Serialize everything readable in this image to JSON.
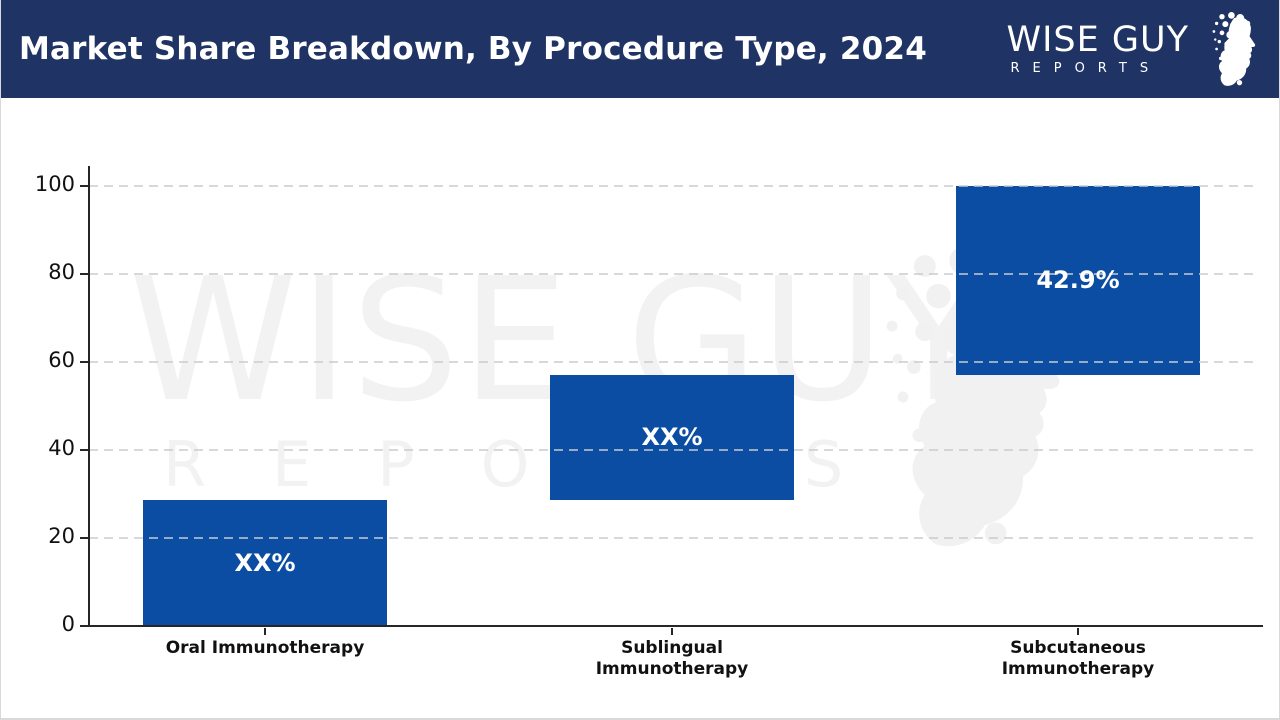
{
  "header": {
    "title": "Market Share Breakdown, By Procedure Type, 2024",
    "logo": {
      "line1": "WISE GUY",
      "line2": "REPORTS"
    }
  },
  "watermark": {
    "line1": "WISE GUY",
    "line2": "REPORTS"
  },
  "chart_data": {
    "type": "bar",
    "subtype": "stacked-waterfall",
    "title": "Market Share Breakdown, By Procedure Type, 2024",
    "categories": [
      "Oral Immunotherapy",
      "Sublingual\nImmunotherapy",
      "Subcutaneous\nImmunotherapy"
    ],
    "segments": [
      {
        "category": "Oral Immunotherapy",
        "start": 0,
        "end": 28.6,
        "value": 28.6,
        "label": "XX%"
      },
      {
        "category": "Sublingual Immunotherapy",
        "start": 28.6,
        "end": 57.1,
        "value": 28.5,
        "label": "XX%"
      },
      {
        "category": "Subcutaneous Immunotherapy",
        "start": 57.1,
        "end": 100,
        "value": 42.9,
        "label": "42.9%"
      }
    ],
    "xlabel": "",
    "ylabel": "",
    "ylim": [
      0,
      100
    ],
    "yticks": [
      0,
      20,
      40,
      60,
      80,
      100
    ],
    "grid": "horizontal-dashed",
    "legend": "none",
    "bar_color": "#0b4da2"
  },
  "colors": {
    "header_bg": "#1f3464",
    "bar": "#0b4da2",
    "axis": "#262626",
    "tick_text": "#111111",
    "grid_rgba": "rgba(200,203,209,0.75)",
    "bar_label": "#ffffff",
    "watermark": "#f2f2f2",
    "bottom_line": "#d9d9d9"
  }
}
